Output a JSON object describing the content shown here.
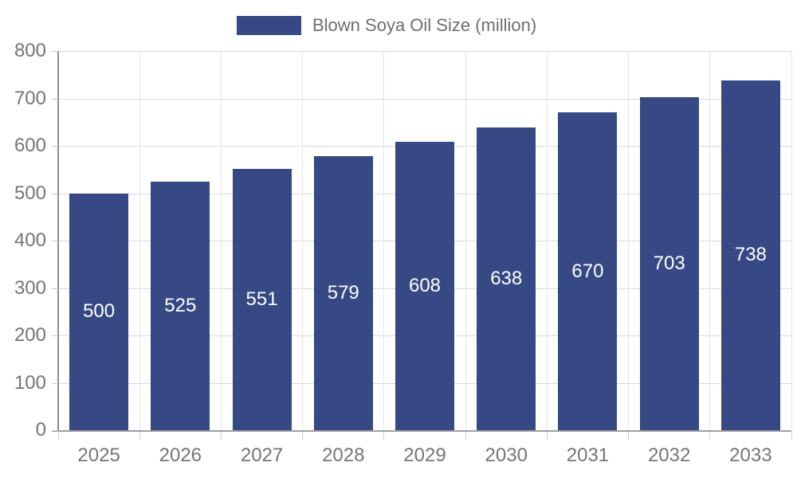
{
  "chart_data": {
    "type": "bar",
    "legend_label": "Blown Soya Oil Size (million)",
    "categories": [
      "2025",
      "2026",
      "2027",
      "2028",
      "2029",
      "2030",
      "2031",
      "2032",
      "2033"
    ],
    "values": [
      500,
      525,
      551,
      579,
      608,
      638,
      670,
      703,
      738
    ],
    "value_labels": [
      "500",
      "525",
      "551",
      "579",
      "608",
      "638",
      "670",
      "703",
      "738"
    ],
    "ylim": [
      0,
      800
    ],
    "yticks": [
      0,
      100,
      200,
      300,
      400,
      500,
      600,
      700,
      800
    ],
    "ytick_labels": [
      "0",
      "100",
      "200",
      "300",
      "400",
      "500",
      "600",
      "700",
      "800"
    ],
    "grid": "horizontal gridlines plus vertical category-boundary gridlines",
    "legend_position": "top-center",
    "bar_color": "#364984",
    "value_label_color": "#ffffff",
    "axis_label_color": "#757575"
  }
}
